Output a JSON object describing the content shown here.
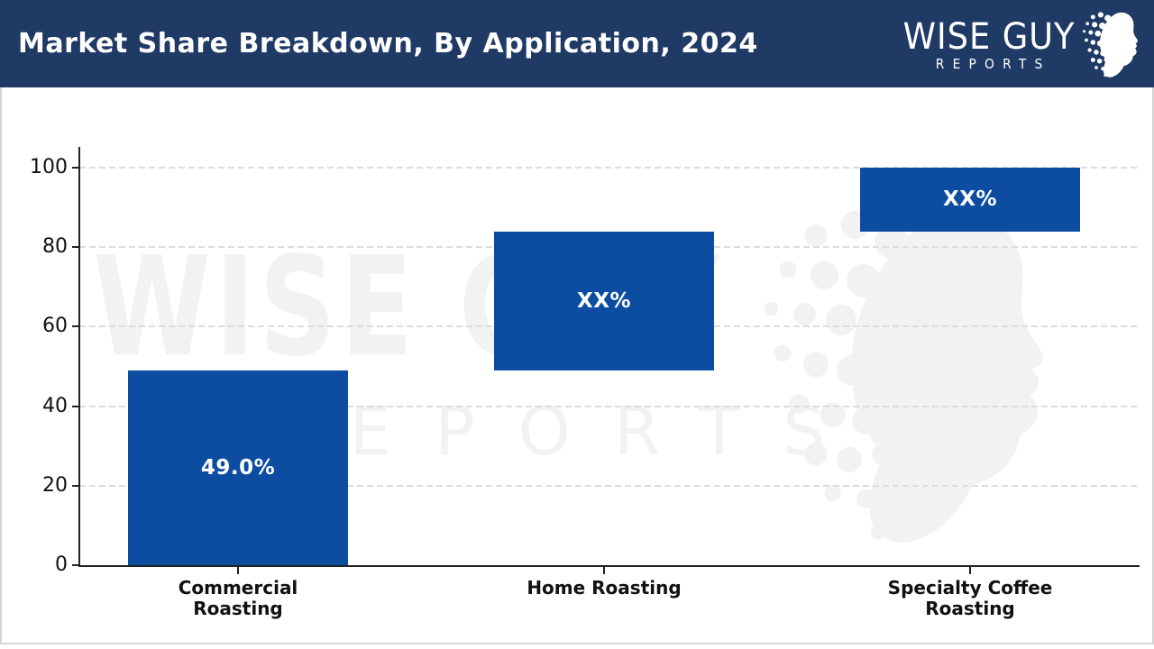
{
  "header": {
    "title": "Market Share Breakdown, By Application, 2024"
  },
  "logo": {
    "line1": "WISE GUY",
    "line2": "REPORTS"
  },
  "watermark": {
    "line1": "WISE GUY",
    "line2": "REPORTS"
  },
  "chart_data": {
    "type": "bar",
    "subtype": "waterfall",
    "title": "Market Share Breakdown, By Application, 2024",
    "categories": [
      [
        "Commercial",
        "Roasting"
      ],
      [
        "Home Roasting"
      ],
      [
        "Specialty Coffee",
        "Roasting"
      ]
    ],
    "series": [
      {
        "name": "Market Share",
        "segments": [
          {
            "category": "Commercial Roasting",
            "start": 0,
            "end": 49,
            "label": "49.0%"
          },
          {
            "category": "Home Roasting",
            "start": 49,
            "end": 84,
            "label": "XX%"
          },
          {
            "category": "Specialty Coffee Roasting",
            "start": 84,
            "end": 100,
            "label": "XX%"
          }
        ]
      }
    ],
    "ylim": [
      0,
      100
    ],
    "y_ticks": [
      0,
      20,
      40,
      60,
      80,
      100
    ],
    "xlabel": "",
    "ylabel": "",
    "grid": "horizontal-dashed",
    "legend": "none",
    "bar_color": "#0c4da2",
    "bar_label_color": "#ffffff",
    "header_color": "#203a66",
    "gridline_color": "#dcdcdc",
    "watermark_color": "#f2f2f2"
  }
}
